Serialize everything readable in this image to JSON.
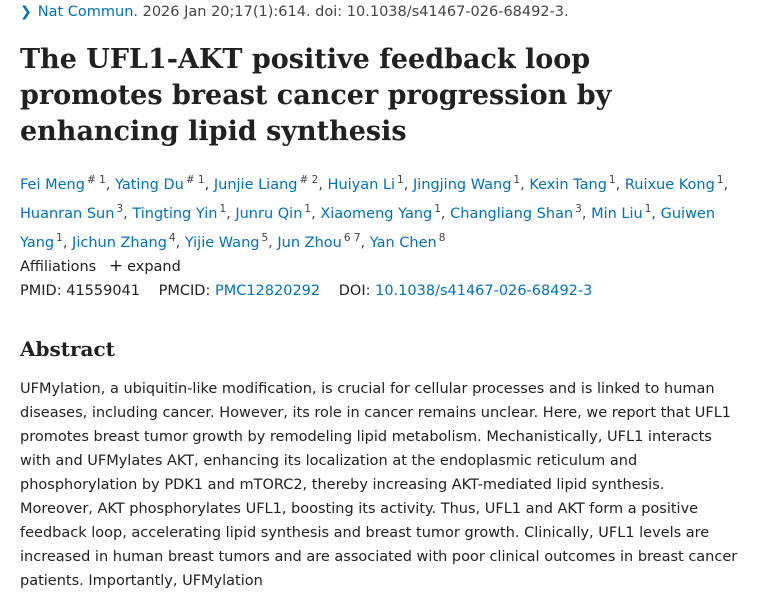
{
  "citation": {
    "journal": "Nat Commun.",
    "details": "2026 Jan 20;17(1):614. doi: 10.1038/s41467-026-68492-3."
  },
  "title": "The UFL1-AKT positive feedback loop promotes breast cancer progression by enhancing lipid synthesis",
  "authors": [
    {
      "name": "Fei Meng",
      "sup": "# 1"
    },
    {
      "name": "Yating Du",
      "sup": "# 1"
    },
    {
      "name": "Junjie Liang",
      "sup": "# 2"
    },
    {
      "name": "Huiyan Li",
      "sup": "1"
    },
    {
      "name": "Jingjing Wang",
      "sup": "1"
    },
    {
      "name": "Kexin Tang",
      "sup": "1"
    },
    {
      "name": "Ruixue Kong",
      "sup": "1"
    },
    {
      "name": "Huanran Sun",
      "sup": "3"
    },
    {
      "name": "Tingting Yin",
      "sup": "1"
    },
    {
      "name": "Junru Qin",
      "sup": "1"
    },
    {
      "name": "Xiaomeng Yang",
      "sup": "1"
    },
    {
      "name": "Changliang Shan",
      "sup": "3"
    },
    {
      "name": "Min Liu",
      "sup": "1"
    },
    {
      "name": "Guiwen Yang",
      "sup": "1"
    },
    {
      "name": "Jichun Zhang",
      "sup": "4"
    },
    {
      "name": "Yijie Wang",
      "sup": "5"
    },
    {
      "name": "Jun Zhou",
      "sup": "6 7"
    },
    {
      "name": "Yan Chen",
      "sup": "8"
    }
  ],
  "affiliations": {
    "label": "Affiliations",
    "expand": "expand"
  },
  "ids": {
    "pmid_label": "PMID:",
    "pmid": "41559041",
    "pmcid_label": "PMCID:",
    "pmcid": "PMC12820292",
    "doi_label": "DOI:",
    "doi": "10.1038/s41467-026-68492-3"
  },
  "abstract": {
    "heading": "Abstract",
    "text": "UFMylation, a ubiquitin-like modification, is crucial for cellular processes and is linked to human diseases, including cancer. However, its role in cancer remains unclear. Here, we report that UFL1 promotes breast tumor growth by remodeling lipid metabolism. Mechanistically, UFL1 interacts with and UFMylates AKT, enhancing its localization at the endoplasmic reticulum and phosphorylation by PDK1 and mTORC2, thereby increasing AKT-mediated lipid synthesis. Moreover, AKT phosphorylates UFL1, boosting its activity. Thus, UFL1 and AKT form a positive feedback loop, accelerating lipid synthesis and breast tumor growth. Clinically, UFL1 levels are increased in human breast tumors and are associated with poor clinical outcomes in breast cancer patients. Importantly, UFMylation"
  }
}
